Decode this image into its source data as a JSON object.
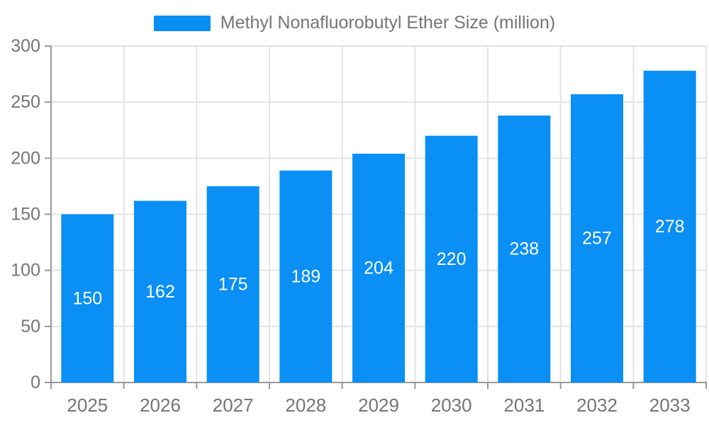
{
  "chart_data": {
    "type": "bar",
    "title": "Methyl Nonafluorobutyl Ether Size (million)",
    "categories": [
      "2025",
      "2026",
      "2027",
      "2028",
      "2029",
      "2030",
      "2031",
      "2032",
      "2033"
    ],
    "series": [
      {
        "name": "Methyl Nonafluorobutyl Ether Size (million)",
        "values": [
          150,
          162,
          175,
          189,
          204,
          220,
          238,
          257,
          278
        ]
      }
    ],
    "xlabel": "",
    "ylabel": "",
    "ylim": [
      0,
      300
    ],
    "yticks": [
      0,
      50,
      100,
      150,
      200,
      250,
      300
    ],
    "grid": true,
    "legend_position": "top-center",
    "bar_labels_inside": true
  },
  "colors": {
    "bar": "#0a8ff5",
    "axis_line": "#999999",
    "grid_line": "#e3e3e3",
    "tick_text": "#757575",
    "legend_text": "#757575",
    "bar_label": "#ffffff",
    "background": "#ffffff"
  }
}
